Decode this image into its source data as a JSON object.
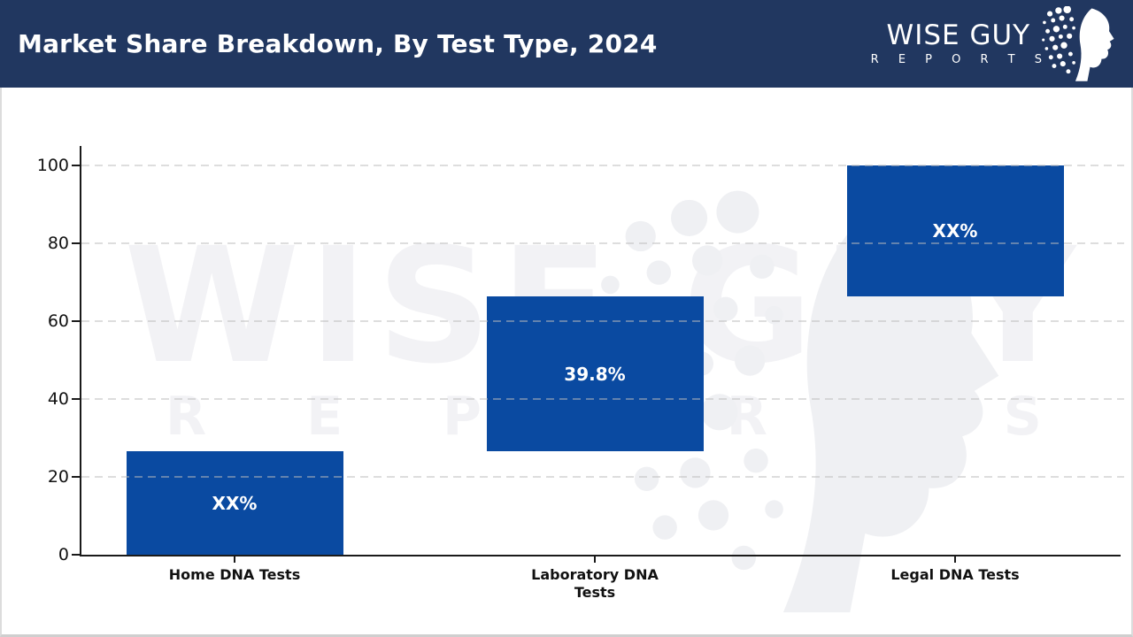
{
  "header": {
    "title": "Market Share Breakdown, By Test Type, 2024",
    "logo": {
      "line1": "WISE GUY",
      "line2": "R E P O R T S"
    },
    "bg_color": "#213760"
  },
  "watermark": {
    "line1": "WISE GUY",
    "line2": "R E P O R T S"
  },
  "chart_data": {
    "type": "bar",
    "variant": "waterfall-floating-bars",
    "title": "Market Share Breakdown, By Test Type, 2024",
    "categories": [
      "Home DNA Tests",
      "Laboratory DNA Tests",
      "Legal DNA Tests"
    ],
    "segments": [
      {
        "category": "Home DNA Tests",
        "start": 0,
        "end": 26.5,
        "value_label": "XX%"
      },
      {
        "category": "Laboratory DNA Tests",
        "start": 26.5,
        "end": 66.3,
        "value_label": "39.8%"
      },
      {
        "category": "Legal DNA Tests",
        "start": 66.3,
        "end": 100,
        "value_label": "XX%"
      }
    ],
    "xlabel": "",
    "ylabel": "",
    "ylim": [
      0,
      100
    ],
    "yticks": [
      0,
      20,
      40,
      60,
      80,
      100
    ],
    "grid": "horizontal-dashed",
    "legend": "none",
    "bar_color": "#0a4aa1",
    "bar_label_color": "#ffffff",
    "axis_color": "#1a1a1a"
  }
}
